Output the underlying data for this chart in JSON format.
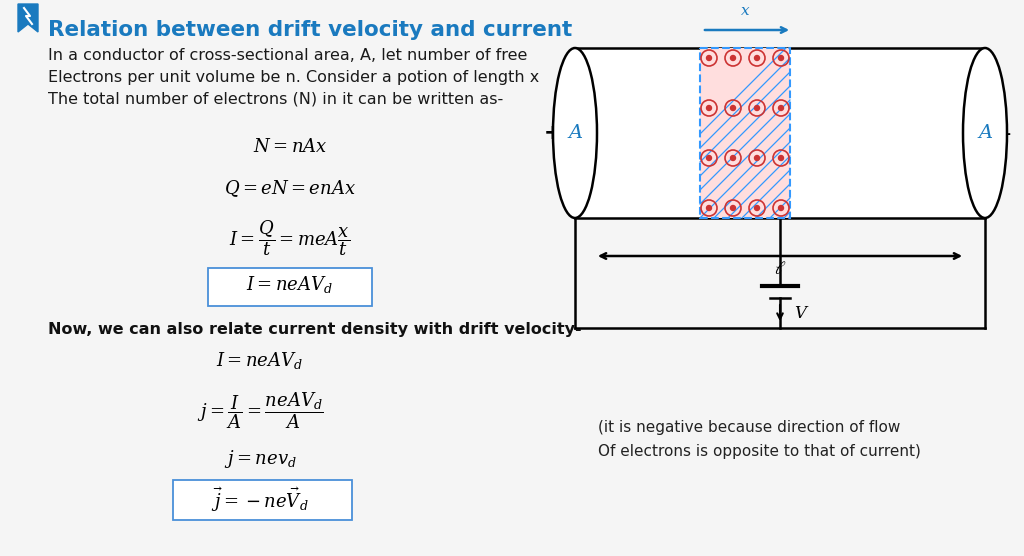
{
  "title": "Relation between drift velocity and current",
  "title_color": "#1a7abf",
  "background_color": "#f5f5f5",
  "intro_text": [
    "In a conductor of cross-sectional area, A, let number of free",
    "Electrons per unit volume be n. Consider a potion of length x",
    "The total number of electrons (N) in it can be written as-"
  ],
  "bold_text": "Now, we can also relate current density with drift velocity-",
  "note_line1": "(it is negative because direction of flow",
  "note_line2": "Of electrons is opposite to that of current)"
}
